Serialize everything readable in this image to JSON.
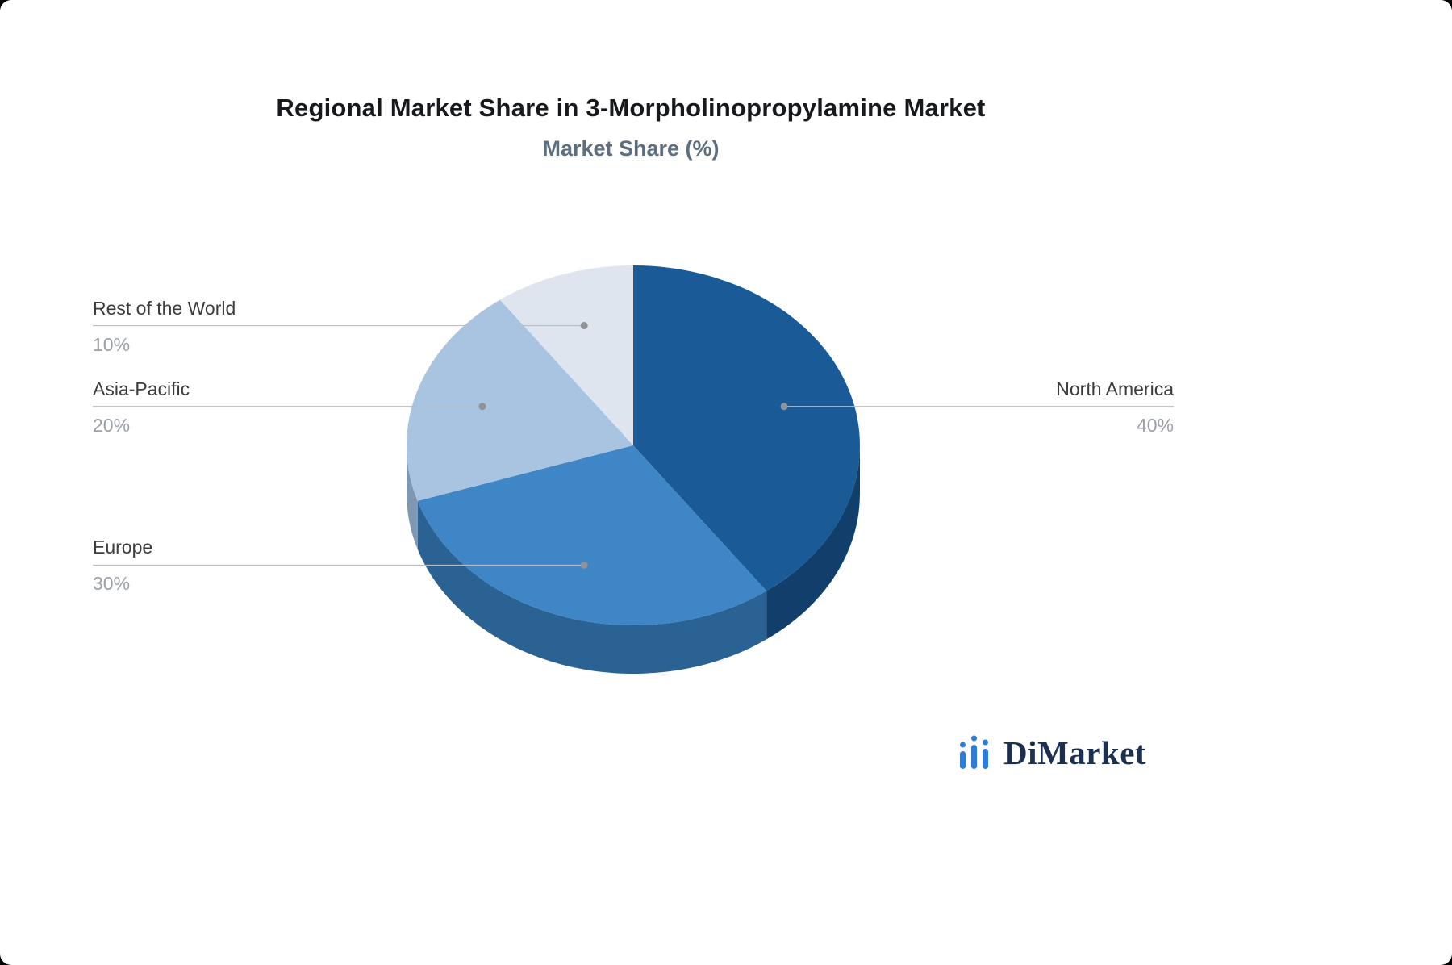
{
  "chart_data": {
    "type": "pie",
    "style": "3d",
    "title": "Regional Market Share in 3-Morpholinopropylamine Market",
    "subtitle": "Market Share (%)",
    "unit": "%",
    "start_angle_deg": -90,
    "direction": "clockwise",
    "legend_position": "callout-labels",
    "slices": [
      {
        "label": "North America",
        "value": 40,
        "display": "40%",
        "color": "#1a5a96",
        "side_color": "#113e6a"
      },
      {
        "label": "Europe",
        "value": 30,
        "display": "30%",
        "color": "#3e86c6",
        "side_color": "#2a6294"
      },
      {
        "label": "Asia-Pacific",
        "value": 20,
        "display": "20%",
        "color": "#a9c4e1",
        "side_color": "#7e97b2"
      },
      {
        "label": "Rest of the World",
        "value": 10,
        "display": "10%",
        "color": "#dfe5ef",
        "side_color": "#aab3c2"
      }
    ],
    "leader_line_color": "#babdc1",
    "leader_dot_color": "#8f9296"
  },
  "branding": {
    "logo_text": "DiMarket",
    "icon": "bar-chart-dots-icon",
    "text_color": "#1d3050",
    "icon_color": "#2e7cd6"
  }
}
